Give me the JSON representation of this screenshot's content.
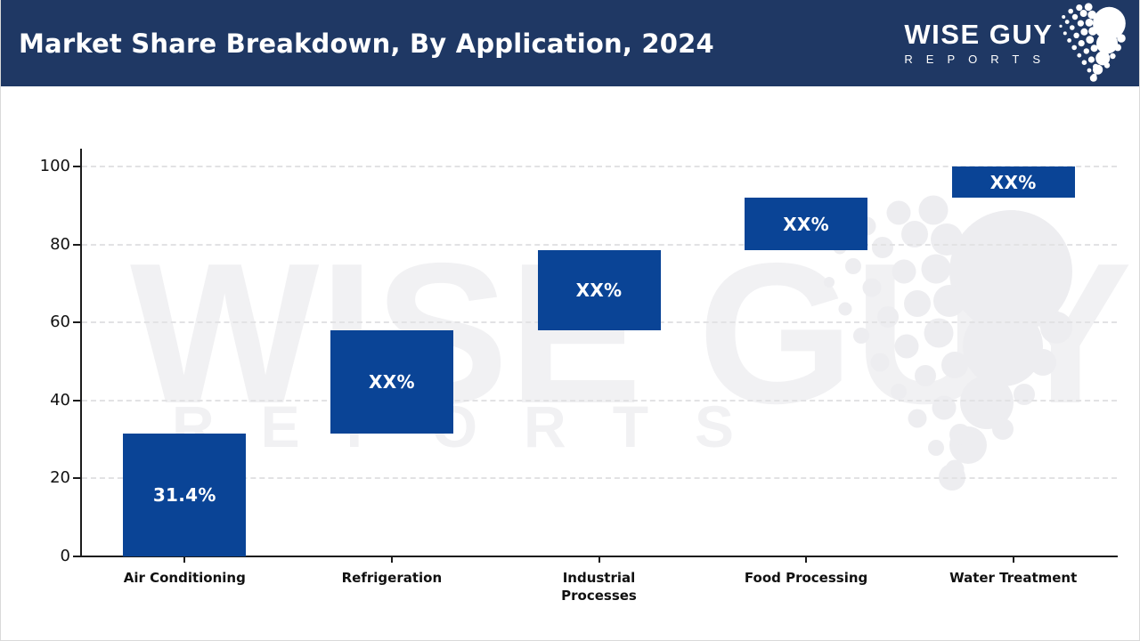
{
  "header": {
    "title": "Market Share Breakdown, By Application, 2024",
    "bg_color": "#1f3864",
    "logo_brand": "WISE GUY",
    "logo_sub": "REPORTS"
  },
  "watermark": {
    "line1": "WISE GUY",
    "line2": "REPORTS"
  },
  "chart_data": {
    "type": "bar",
    "variant": "floating-waterfall",
    "title": "Market Share Breakdown, By Application, 2024",
    "xlabel": "",
    "ylabel": "",
    "categories": [
      "Air Conditioning",
      "Refrigeration",
      "Industrial Processes",
      "Food Processing",
      "Water Treatment"
    ],
    "segments": [
      {
        "category": "Air Conditioning",
        "start": 0,
        "end": 31.4,
        "label": "31.4%"
      },
      {
        "category": "Refrigeration",
        "start": 31.4,
        "end": 58,
        "label": "XX%"
      },
      {
        "category": "Industrial Processes",
        "start": 58,
        "end": 78.5,
        "label": "XX%"
      },
      {
        "category": "Food Processing",
        "start": 78.5,
        "end": 92,
        "label": "XX%"
      },
      {
        "category": "Water Treatment",
        "start": 92,
        "end": 100,
        "label": "XX%"
      }
    ],
    "y_ticks": [
      0,
      20,
      40,
      60,
      80,
      100
    ],
    "ylim": [
      0,
      105
    ],
    "grid": "horizontal-dashed",
    "legend": "none",
    "bar_color": "#0a4496",
    "bar_label_color": "#ffffff",
    "axis_color": "#1c1c1c"
  }
}
